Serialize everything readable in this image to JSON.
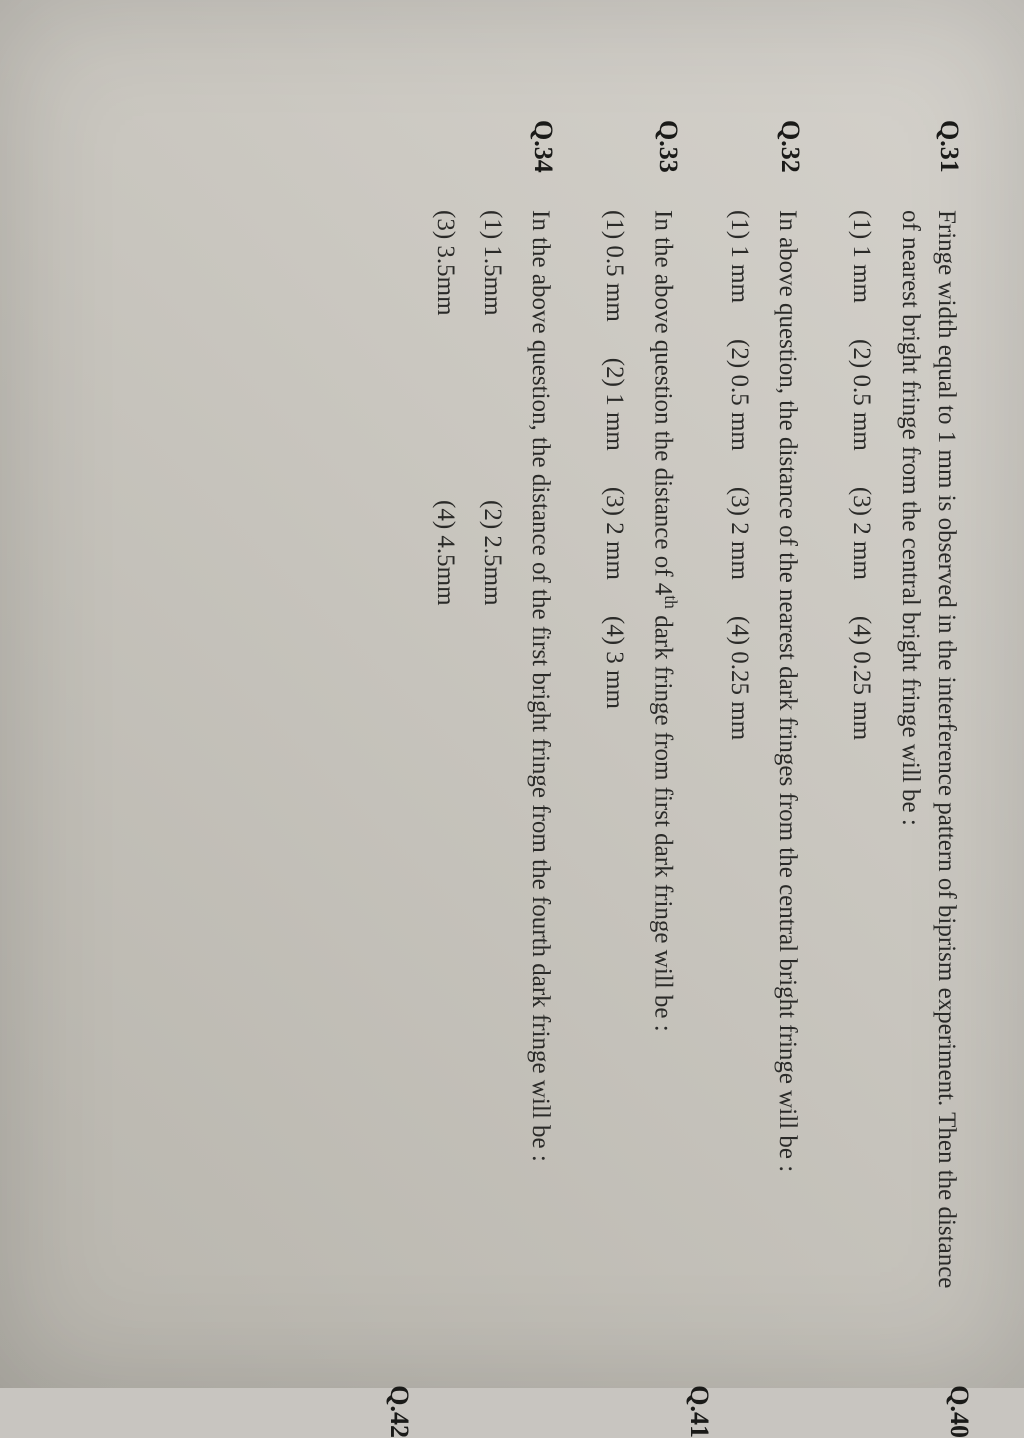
{
  "page": {
    "background_color": "#cac7c0",
    "text_color": "#2a2a28",
    "font_family": "Georgia, Times New Roman, serif",
    "q_number_fontsize": 26,
    "body_fontsize": 25
  },
  "side_refs": {
    "q40": "Q.40",
    "q41": "Q.41",
    "q42": "Q.42"
  },
  "questions": [
    {
      "number": "Q.31",
      "text": "Fringe width equal to 1 mm is observed in the interference pattern of biprism experiment. Then the distance of nearest bright fringe from the central bright fringe will be :",
      "options": [
        "(1) 1 mm",
        "(2) 0.5 mm",
        "(3) 2 mm",
        "(4) 0.25 mm"
      ],
      "layout": "row"
    },
    {
      "number": "Q.32",
      "text": "In above question, the distance of the nearest dark fringes from the central bright fringe will be :",
      "options": [
        "(1) 1 mm",
        "(2) 0.5 mm",
        "(3) 2 mm",
        "(4) 0.25 mm"
      ],
      "layout": "row"
    },
    {
      "number": "Q.33",
      "text_html": "In the above question the distance of 4<sup>th</sup> dark fringe from first dark fringe will be :",
      "options": [
        "(1) 0.5 mm",
        "(2) 1 mm",
        "(3) 2 mm",
        "(4) 3 mm"
      ],
      "layout": "row"
    },
    {
      "number": "Q.34",
      "text": "In the above question, the distance of the first bright fringe from the fourth dark fringe will be :",
      "options": [
        "(1) 1.5mm",
        "(2) 2.5mm",
        "(3) 3.5mm",
        "(4) 4.5mm"
      ],
      "layout": "two-col"
    }
  ]
}
